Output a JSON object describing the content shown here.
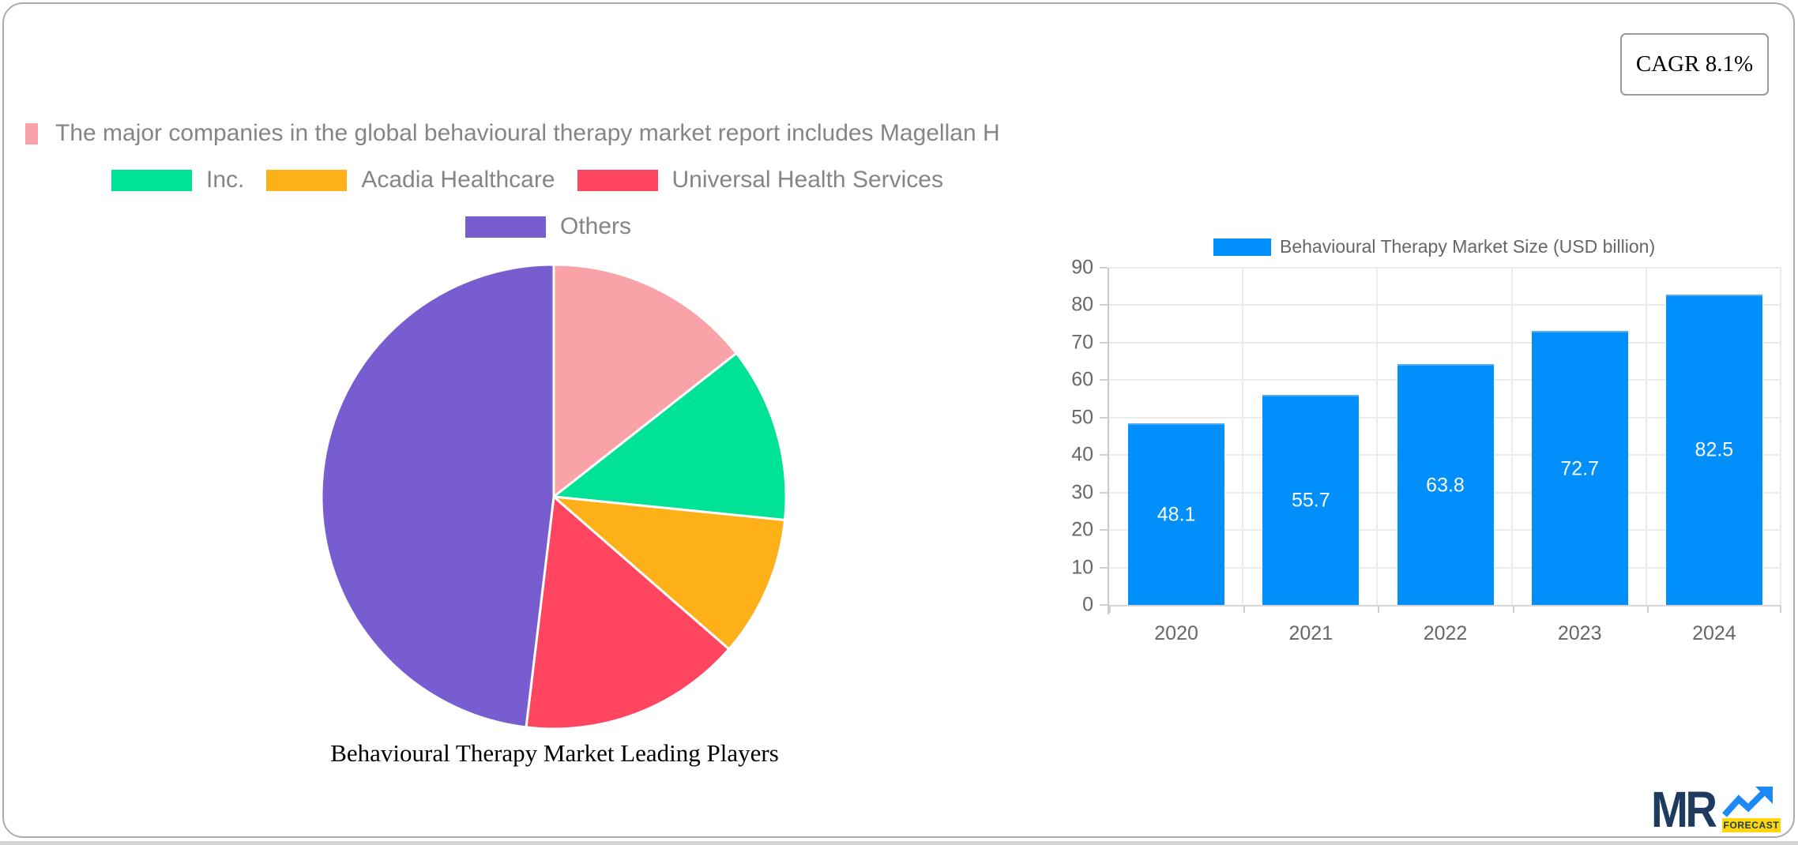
{
  "badge": {
    "text": "CAGR 8.1%"
  },
  "pie_legend": {
    "row1": {
      "label": "The major companies in the global behavioural therapy market report includes Magellan H",
      "color": "#F9A3A8"
    },
    "row2": [
      {
        "label": "Inc.",
        "color": "#00E396"
      },
      {
        "label": "Acadia Healthcare",
        "color": "#FEB019"
      },
      {
        "label": "Universal Health Services",
        "color": "#FF4560"
      }
    ],
    "row3": {
      "label": "Others",
      "color": "#775DD0"
    }
  },
  "chart_data": [
    {
      "type": "pie",
      "title": "Behavioural Therapy Market Leading Players",
      "labels": [
        "The major companies in the global behavioural therapy market report includes Magellan H",
        "Inc.",
        "Acadia Healthcare",
        "Universal Health Services",
        "Others"
      ],
      "values_percent": [
        14.4,
        12.2,
        9.8,
        15.5,
        48.1
      ],
      "colors": [
        "#F9A3A8",
        "#00E396",
        "#FEB019",
        "#FF4560",
        "#775DD0"
      ],
      "start_angle": "top",
      "direction": "clockwise",
      "slice_gap_color": "#ffffff",
      "legend_position": "top"
    },
    {
      "type": "bar",
      "categories": [
        "2020",
        "2021",
        "2022",
        "2023",
        "2024"
      ],
      "series": [
        {
          "name": "Behavioural Therapy Market Size (USD billion)",
          "values": [
            48.1,
            55.7,
            63.8,
            72.7,
            82.5
          ]
        }
      ],
      "bar_color": "#008FFB",
      "value_label_color": "#ffffff",
      "ylim": [
        0,
        90
      ],
      "yticks": [
        0,
        10,
        20,
        30,
        40,
        50,
        60,
        70,
        80,
        90
      ],
      "grid": true,
      "legend_position": "top"
    }
  ],
  "logo": {
    "text": "MR",
    "sub": "FORECAST",
    "navy": "#1D3A5F",
    "yellow": "#FFD60A",
    "arrow_blue": "#1E88F5"
  }
}
